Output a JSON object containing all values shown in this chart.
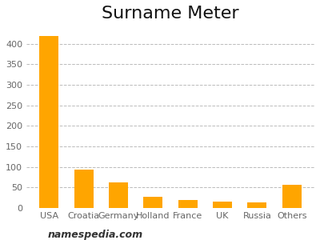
{
  "title": "Surname Meter",
  "categories": [
    "USA",
    "Croatia",
    "Germany",
    "Holland",
    "France",
    "UK",
    "Russia",
    "Others"
  ],
  "values": [
    418,
    94,
    63,
    28,
    19,
    16,
    14,
    57
  ],
  "bar_color": "#FFA500",
  "background_color": "#ffffff",
  "ylim": [
    0,
    440
  ],
  "yticks": [
    0,
    50,
    100,
    150,
    200,
    250,
    300,
    350,
    400
  ],
  "grid_color": "#bbbbbb",
  "title_fontsize": 16,
  "tick_fontsize": 8,
  "xtick_fontsize": 8,
  "watermark": "namespedia.com",
  "watermark_fontsize": 9
}
